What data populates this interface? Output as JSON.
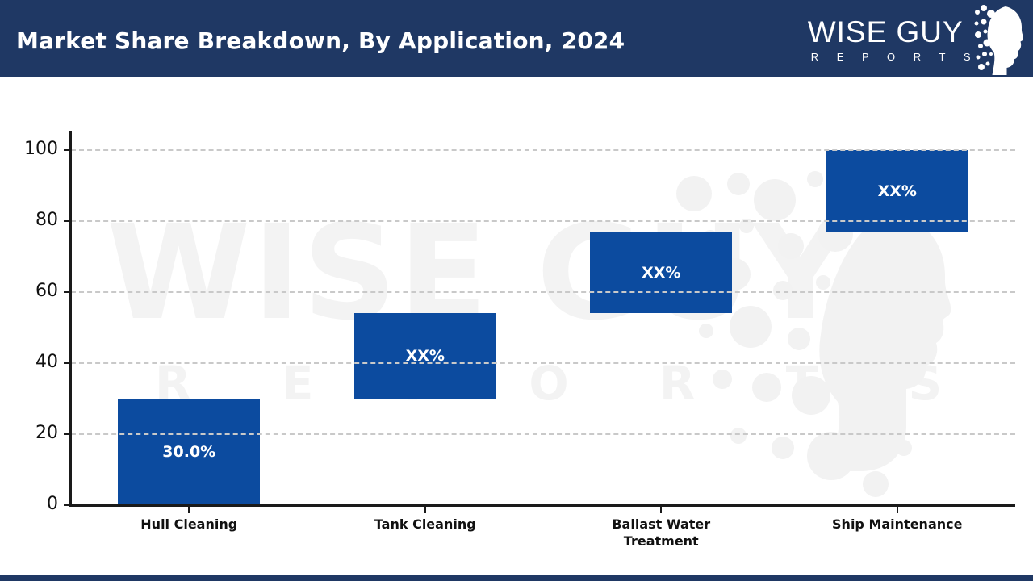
{
  "header": {
    "title": "Market Share Breakdown, By Application, 2024",
    "bg_color": "#1f3864",
    "logo": {
      "line1": "WISE GUY",
      "line2": "R E P O R T S",
      "face_icon": "dotted-head-profile-icon"
    }
  },
  "watermark": {
    "line1": "WISE GUY",
    "line2": "R E P O R T S",
    "face_icon": "dotted-head-profile-icon"
  },
  "footer": {
    "bg_color": "#1f3864"
  },
  "chart_data": {
    "type": "bar",
    "variant": "waterfall",
    "title": "Market Share Breakdown, By Application, 2024",
    "categories": [
      "Hull Cleaning",
      "Tank Cleaning",
      "Ballast Water Treatment",
      "Ship Maintenance"
    ],
    "segments": [
      {
        "category": "Hull Cleaning",
        "start": 0,
        "end": 30,
        "label": "30.0%"
      },
      {
        "category": "Tank Cleaning",
        "start": 30,
        "end": 54,
        "label": "XX%"
      },
      {
        "category": "Ballast Water Treatment",
        "start": 54,
        "end": 77,
        "label": "XX%"
      },
      {
        "category": "Ship Maintenance",
        "start": 77,
        "end": 100,
        "label": "XX%"
      }
    ],
    "xlabel": "",
    "ylabel": "",
    "ylim": [
      0,
      100
    ],
    "yticks": [
      0,
      20,
      40,
      60,
      80,
      100
    ],
    "grid": "horizontal-dashed-above-bars",
    "legend": "none",
    "colors": {
      "bar": "#0c4b9f",
      "bar_label": "#ffffff",
      "grid": "#c9c9c9",
      "axis": "#1a1a1a",
      "tick_label": "#111111",
      "header_bg": "#1f3864",
      "watermark": "#f3f3f3"
    }
  }
}
